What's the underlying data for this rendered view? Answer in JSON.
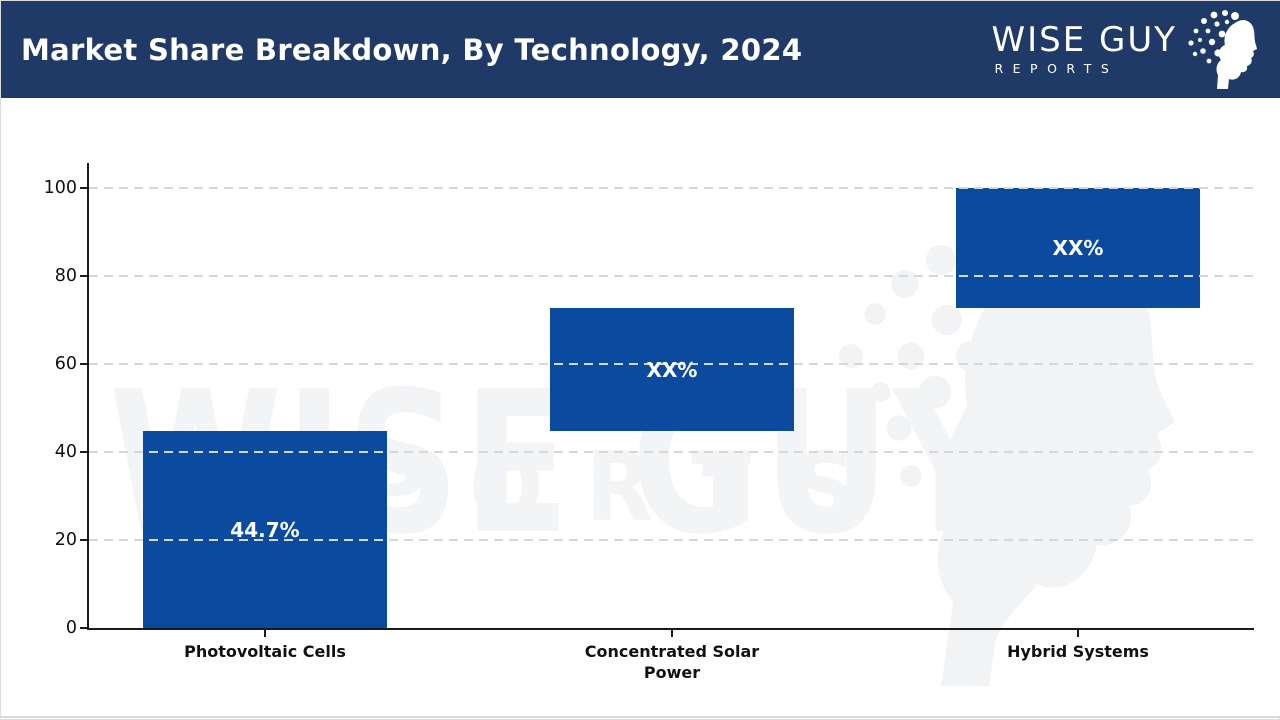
{
  "header": {
    "title": "Market Share Breakdown, By Technology, 2024",
    "logo": {
      "wordmark": "WISE GUY",
      "subtext": "REPORTS"
    }
  },
  "watermark": {
    "line1": "WISE GUY",
    "line2": "REPORTS"
  },
  "colors": {
    "header_bg": "#1f3a66",
    "bar_blue": "#0a4a9f",
    "grid_gray": "#d7d7d7",
    "watermark_gray": "#f3f4f6",
    "text_white": "#ffffff",
    "text_black": "#111111"
  },
  "chart_data": {
    "type": "bar",
    "variant": "floating-segments",
    "title": "Market Share Breakdown, By Technology, 2024",
    "categories": [
      "Photovoltaic Cells",
      "Concentrated Solar Power",
      "Hybrid Systems"
    ],
    "segments": [
      {
        "category": "Photovoltaic Cells",
        "from": 0,
        "to": 44.7,
        "label": "44.7%"
      },
      {
        "category": "Concentrated Solar Power",
        "from": 44.7,
        "to": 72.7,
        "label": "XX%"
      },
      {
        "category": "Hybrid Systems",
        "from": 72.7,
        "to": 100,
        "label": "XX%"
      }
    ],
    "ylim": [
      0,
      100
    ],
    "yticks": [
      0,
      20,
      40,
      60,
      80,
      100
    ],
    "grid": "dashed-horizontal",
    "legend": "none",
    "bar_color": "#0a4a9f"
  }
}
